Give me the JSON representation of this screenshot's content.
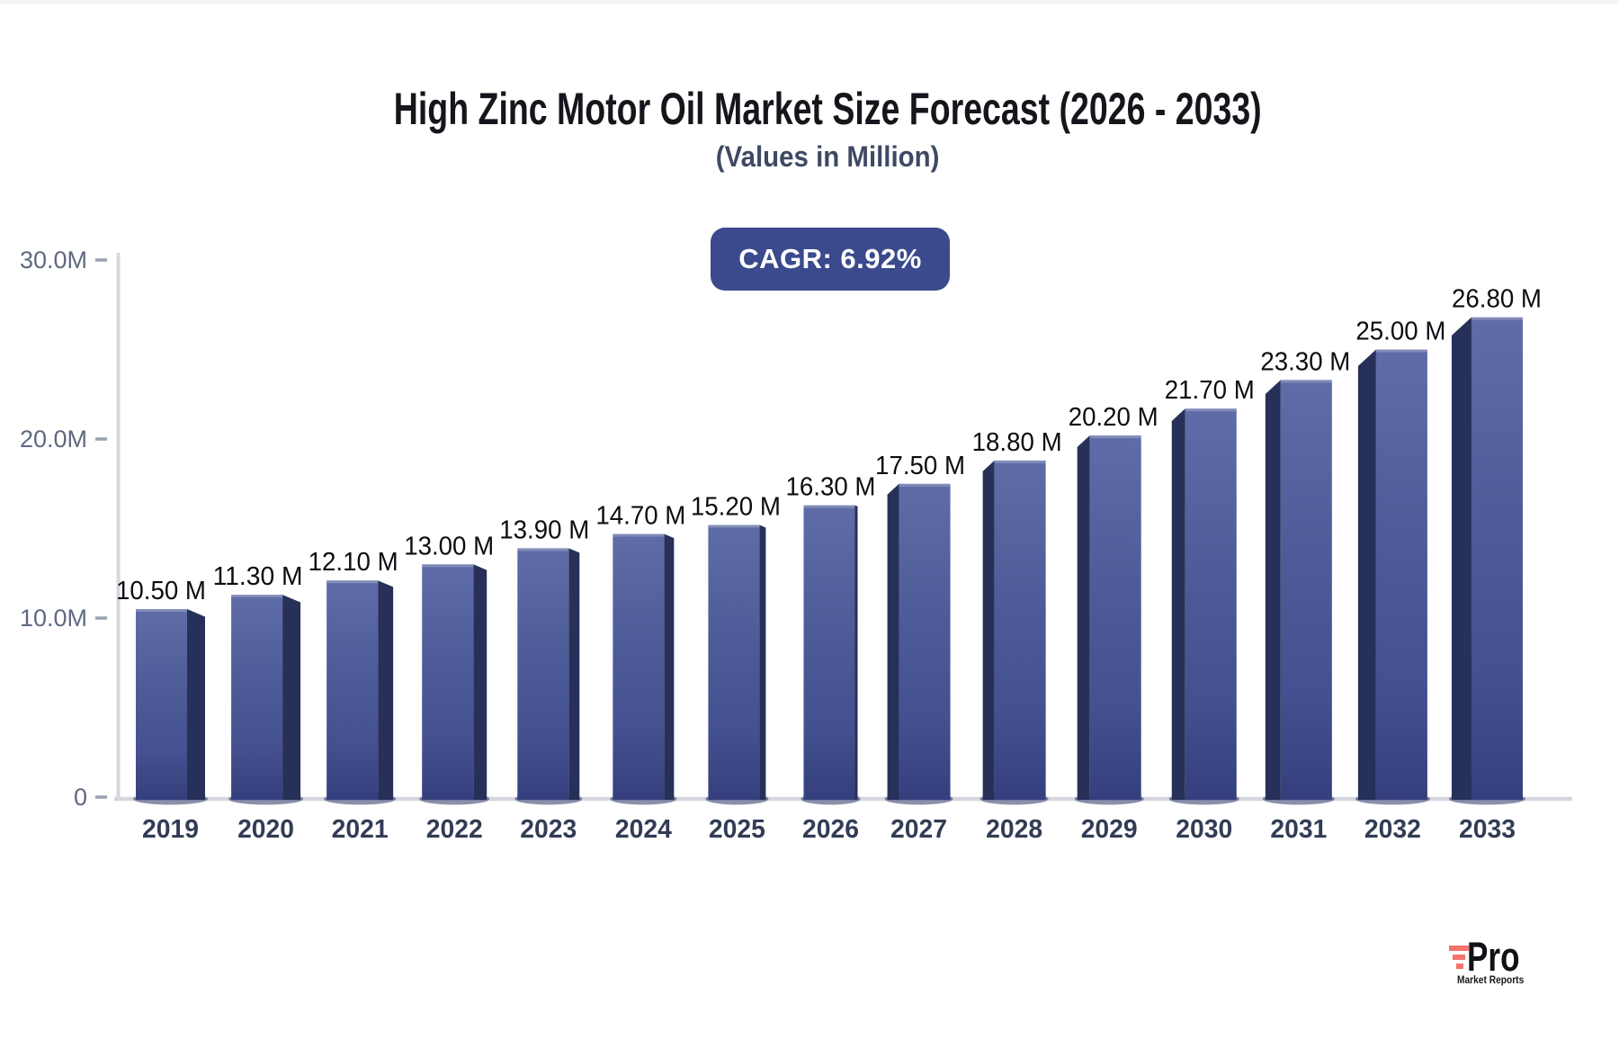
{
  "header": {
    "title": "High Zinc Motor Oil Market Size Forecast (2026 - 2033)",
    "subtitle": "(Values in Million)",
    "cagr_badge": "CAGR: 6.92%"
  },
  "chart_data": {
    "type": "bar",
    "title": "High Zinc Motor Oil Market Size Forecast (2026 - 2033)",
    "subtitle": "(Values in Million)",
    "unit": "Million",
    "cagr_text": "CAGR: 6.92%",
    "categories": [
      "2019",
      "2020",
      "2021",
      "2022",
      "2023",
      "2024",
      "2025",
      "2026",
      "2027",
      "2028",
      "2029",
      "2030",
      "2031",
      "2032",
      "2033"
    ],
    "values": [
      10.5,
      11.3,
      12.1,
      13.0,
      13.9,
      14.7,
      15.2,
      16.3,
      17.5,
      18.8,
      20.2,
      21.7,
      23.3,
      25.0,
      26.8
    ],
    "value_labels": [
      "10.50 M",
      "11.30 M",
      "12.10 M",
      "13.00 M",
      "13.90 M",
      "14.70 M",
      "15.20 M",
      "16.30 M",
      "17.50 M",
      "18.80 M",
      "20.20 M",
      "21.70 M",
      "23.30 M",
      "25.00 M",
      "26.80 M"
    ],
    "y_axis": {
      "range": [
        0,
        30
      ],
      "ticks": [
        {
          "value": 0,
          "label": "0"
        },
        {
          "value": 10,
          "label": "10.0M"
        },
        {
          "value": 20,
          "label": "20.0M"
        },
        {
          "value": 30,
          "label": "30.0M"
        }
      ]
    },
    "grid": false,
    "legend": false,
    "bar_style": "3d-perspective"
  },
  "colors": {
    "badge_bg": "#3a4a8d",
    "badge_text": "#ffffff",
    "axis_line": "#d4d7de",
    "tick_dash": "#9aa1b2",
    "tick_text": "#5f6980",
    "year_text": "#323c55",
    "value_text": "#0b0d12",
    "bar_face_top": "#5f6ca7",
    "bar_face_mid": "#4e5c99",
    "bar_face_low": "#44508f",
    "bar_face_bottom": "#353f7d",
    "bar_side": "#273059",
    "bar_shadow": "#2c3566",
    "logo_accent": "#f3756d"
  },
  "logo": {
    "name": "Pro",
    "tagline": "Market Reports"
  }
}
